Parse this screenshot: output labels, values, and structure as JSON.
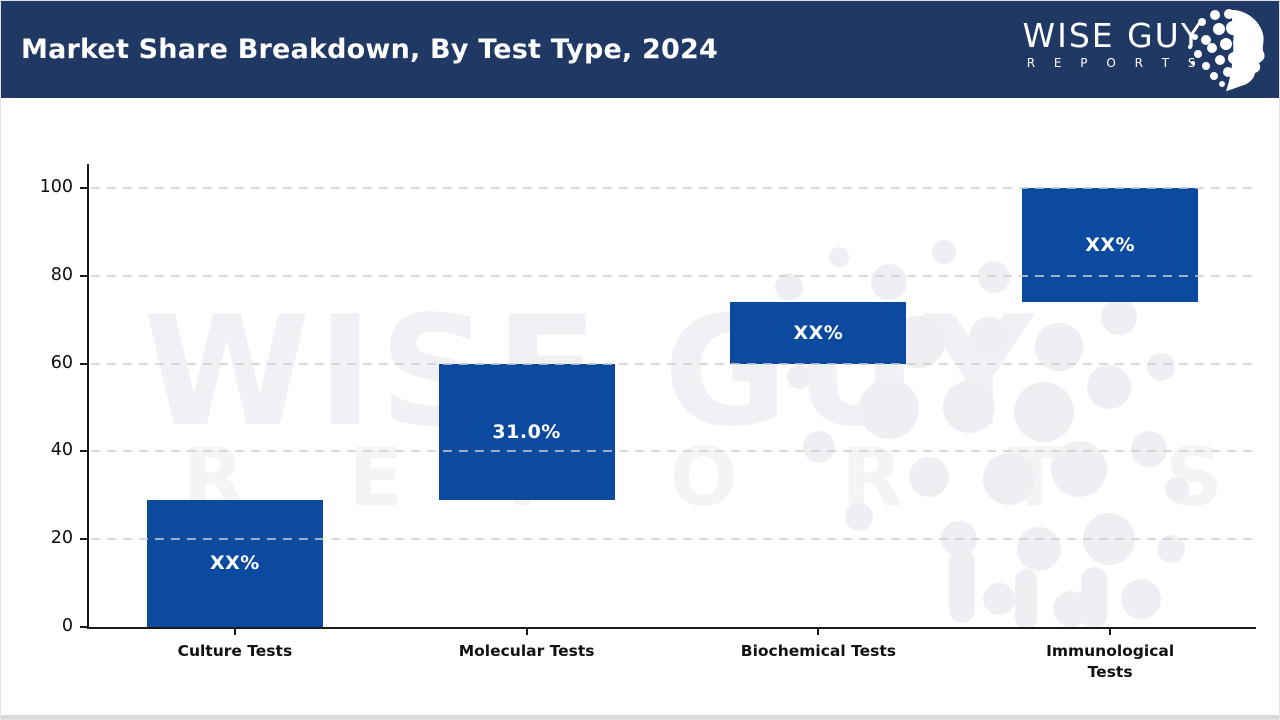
{
  "header": {
    "title": "Market Share Breakdown, By Test Type, 2024",
    "logo": {
      "line1": "WISE GUY",
      "line2": "R E P O R T S"
    }
  },
  "watermark": {
    "line1": "WISE GUY",
    "line2": "R E P O R T S"
  },
  "chart_data": {
    "type": "bar",
    "subtype": "waterfall",
    "title": "Market Share Breakdown, By Test Type, 2024",
    "categories": [
      "Culture Tests",
      "Molecular Tests",
      "Biochemical Tests",
      "Immunological Tests"
    ],
    "segments": [
      {
        "category": "Culture Tests",
        "start": 0,
        "end": 29,
        "label": "XX%"
      },
      {
        "category": "Molecular Tests",
        "start": 29,
        "end": 60,
        "label": "31.0%"
      },
      {
        "category": "Biochemical Tests",
        "start": 60,
        "end": 74,
        "label": "XX%"
      },
      {
        "category": "Immunological Tests",
        "start": 74,
        "end": 100,
        "label": "XX%"
      }
    ],
    "yticks": [
      0,
      20,
      40,
      60,
      80,
      100
    ],
    "ylim": [
      0,
      105
    ],
    "xlabel": "",
    "ylabel": "",
    "grid": "horizontal-dashed",
    "legend": "none",
    "bar_color": "#0b4a9f",
    "bar_label_color": "#ffffff"
  },
  "colors": {
    "header_bg": "#1f3864",
    "bar_blue": "#0b4a9f",
    "grid_line": "#dcdcdc",
    "axis": "#1a1a1a",
    "watermark": "#f0f1f4",
    "footer_strip": "#d9d9d9"
  }
}
